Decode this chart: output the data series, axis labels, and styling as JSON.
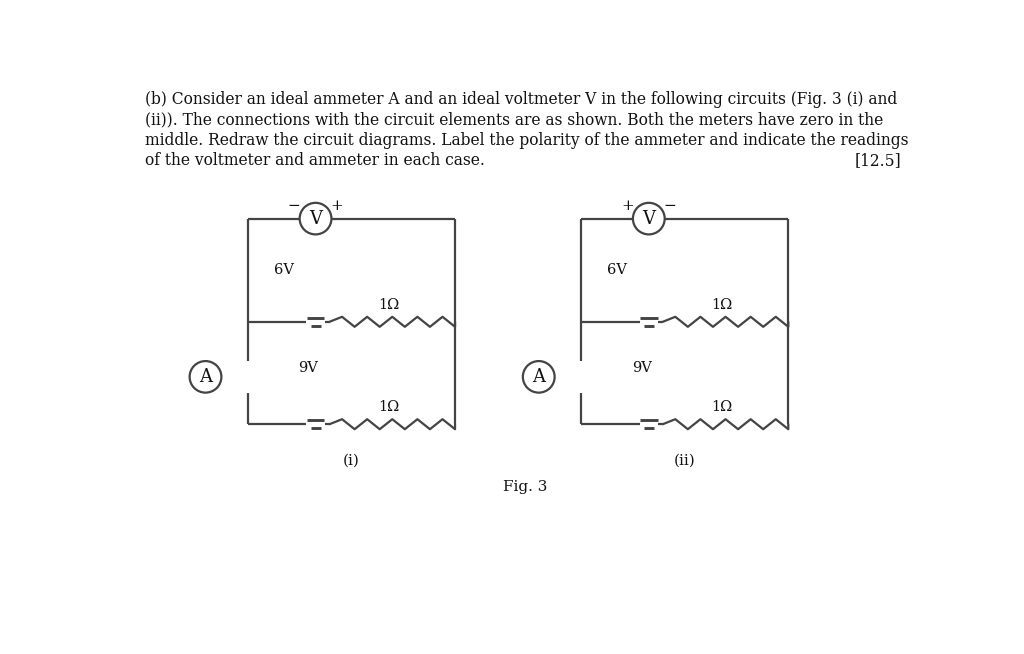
{
  "bg_color": "#ffffff",
  "line_color": "#444444",
  "text_color": "#111111",
  "circle_fill": "#ffffff",
  "circle_edge": "#444444",
  "font_size_text": 11.2,
  "font_size_label": 11,
  "font_size_meter": 13,
  "font_size_component": 10.5,
  "fig_label": "Fig. 3",
  "circuit_i_label": "(i)",
  "circuit_ii_label": "(ii)",
  "marks_text": "[12.5]",
  "text_lines": [
    "(b) Consider an ideal ammeter A and an ideal voltmeter V in the following circuits (Fig. 3 (i) and",
    "(ii)). The connections with the circuit elements are as shown. Both the meters have zero in the",
    "middle. Redraw the circuit diagrams. Label the polarity of the ammeter and indicate the readings",
    "of the voltmeter and ammeter in each case."
  ]
}
